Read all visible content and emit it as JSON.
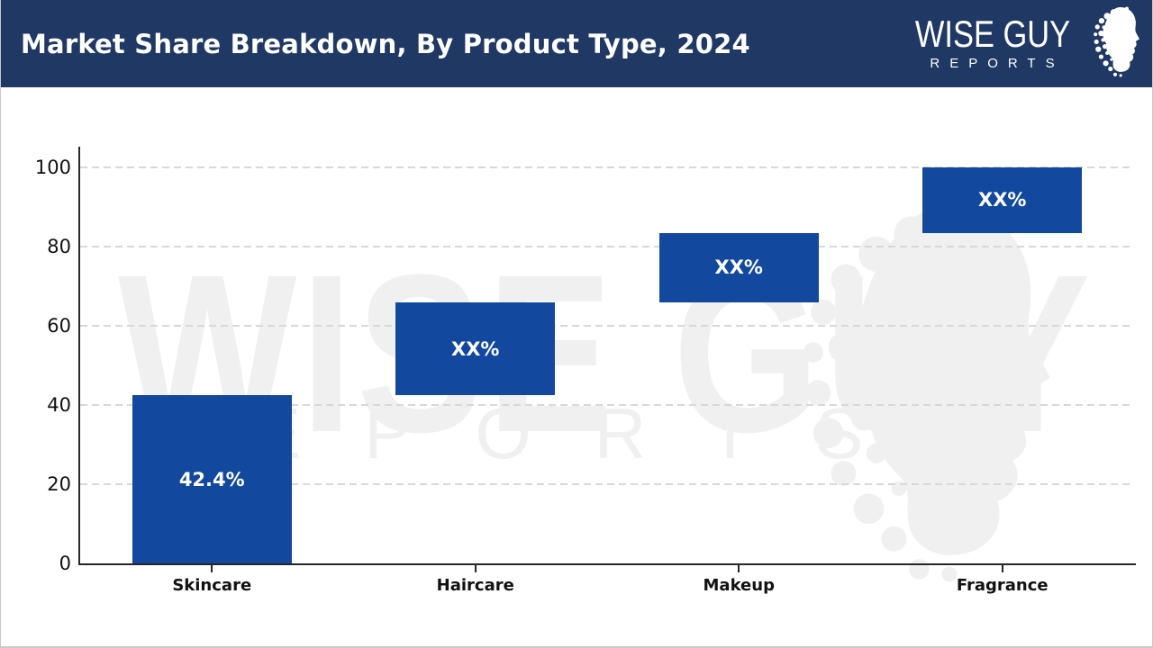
{
  "header": {
    "title": "Market Share Breakdown, By Product Type, 2024",
    "bg_color": "#1f3864",
    "logo": {
      "line1": "WISE GUY",
      "line2": "REPORTS"
    }
  },
  "watermark": {
    "line1": "WISE GUY",
    "line2": "REPORTS"
  },
  "chart_data": {
    "type": "bar",
    "subtype": "waterfall",
    "title": "Market Share Breakdown, By Product Type, 2024",
    "categories": [
      "Skincare",
      "Haircare",
      "Makeup",
      "Fragrance"
    ],
    "segments": [
      {
        "category": "Skincare",
        "start": 0,
        "end": 42.4,
        "label": "42.4%"
      },
      {
        "category": "Haircare",
        "start": 42.4,
        "end": 65.9,
        "label": "XX%"
      },
      {
        "category": "Makeup",
        "start": 65.9,
        "end": 83.4,
        "label": "XX%"
      },
      {
        "category": "Fragrance",
        "start": 83.4,
        "end": 100,
        "label": "XX%"
      }
    ],
    "values_implied": [
      42.4,
      23.5,
      17.5,
      16.6
    ],
    "unit": "%",
    "xlabel": "",
    "ylabel": "",
    "yticks": [
      0,
      20,
      40,
      60,
      80,
      100
    ],
    "ylim": [
      0,
      105.2
    ],
    "grid": {
      "axis": "y",
      "style": "dashed",
      "color": "#d8d8d8"
    },
    "legend": false,
    "bar_color": "#12489e",
    "bar_label_color": "#ffffff"
  }
}
